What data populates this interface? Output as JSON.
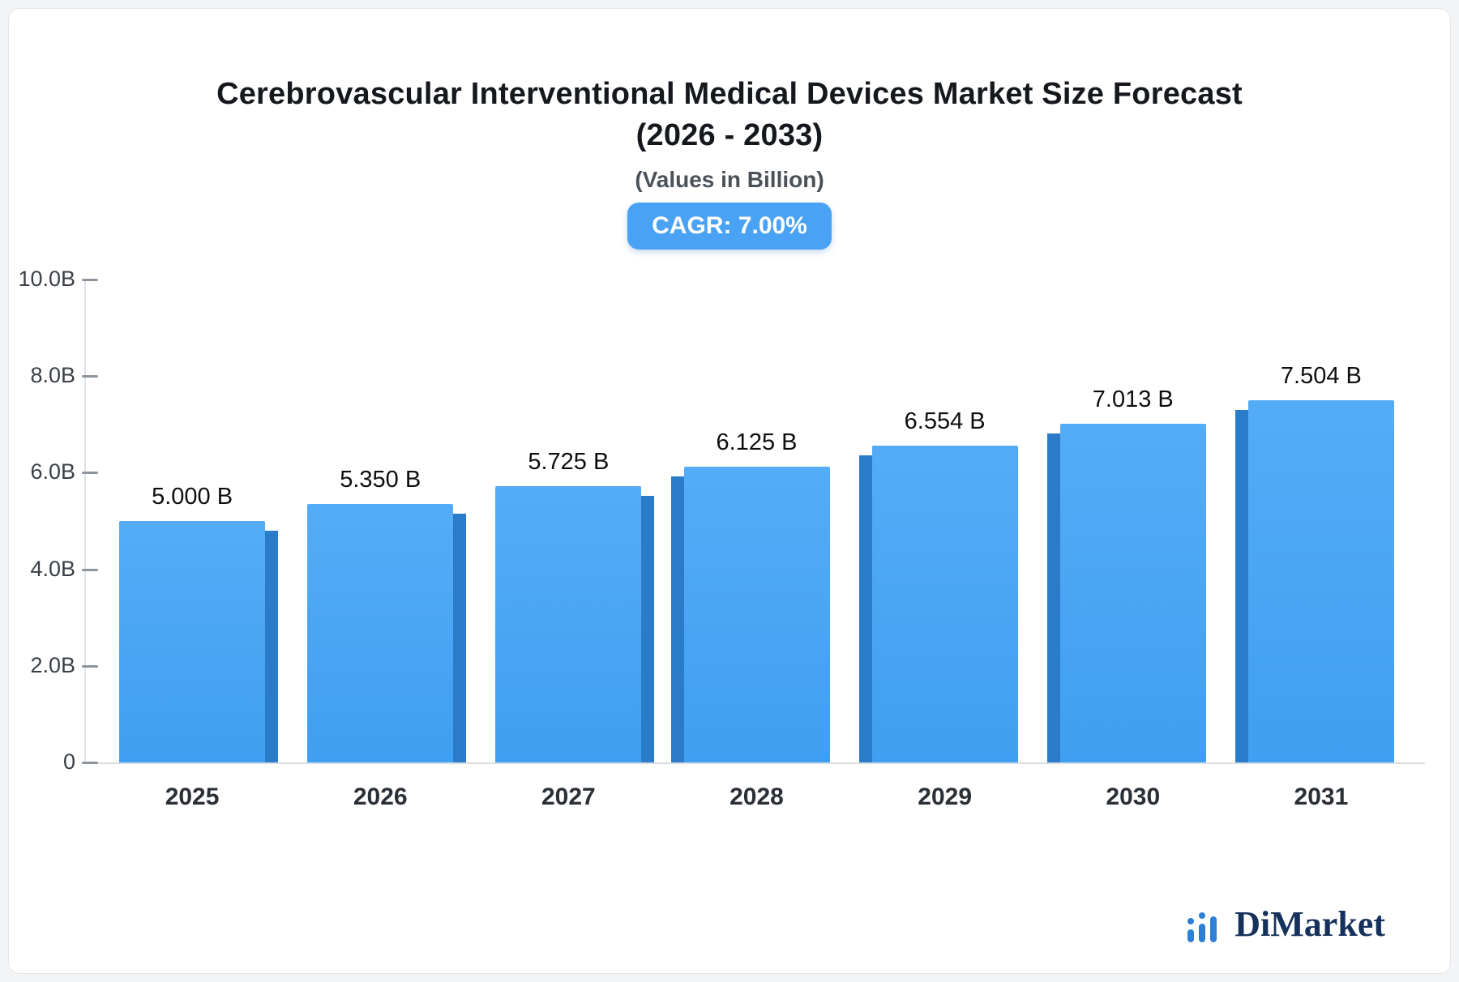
{
  "colors": {
    "background": "#f3f4f6",
    "card": "#ffffff",
    "title_text": "#15181c",
    "axis_text": "#3a4046",
    "bar_main": "#3f9ff2",
    "bar_main_light": "#55acf6",
    "bar_side": "#2a7cc9",
    "badge_bg": "#4aa2f4",
    "badge_text": "#ffffff",
    "logo_text": "#16325c",
    "logo_icon": "#2e7fd6"
  },
  "chart_data": {
    "type": "bar",
    "title": "Cerebrovascular Interventional Medical Devices Market Size Forecast (2026 - 2033)",
    "subtitle": "(Values in Billion)",
    "cagr_label": "CAGR: 7.00%",
    "categories": [
      "2025",
      "2026",
      "2027",
      "2028",
      "2029",
      "2030",
      "2031"
    ],
    "values": [
      5.0,
      5.35,
      5.725,
      6.125,
      6.554,
      7.013,
      7.504
    ],
    "value_labels": [
      "5.000 B",
      "5.350 B",
      "5.725 B",
      "6.125 B",
      "6.554 B",
      "7.013 B",
      "7.504 B"
    ],
    "xlabel": "",
    "ylabel": "",
    "ylim": [
      0,
      10
    ],
    "y_tick_values": [
      10,
      8,
      6,
      4,
      2,
      0
    ],
    "y_tick_labels": [
      "10.0B",
      "8.0B",
      "6.0B",
      "4.0B",
      "2.0B",
      "0"
    ],
    "grid": "off",
    "legend": "none",
    "style": "3d-extruded-bars"
  },
  "logo": {
    "text": "DiMarket",
    "icon": "bar-chart-icon"
  }
}
